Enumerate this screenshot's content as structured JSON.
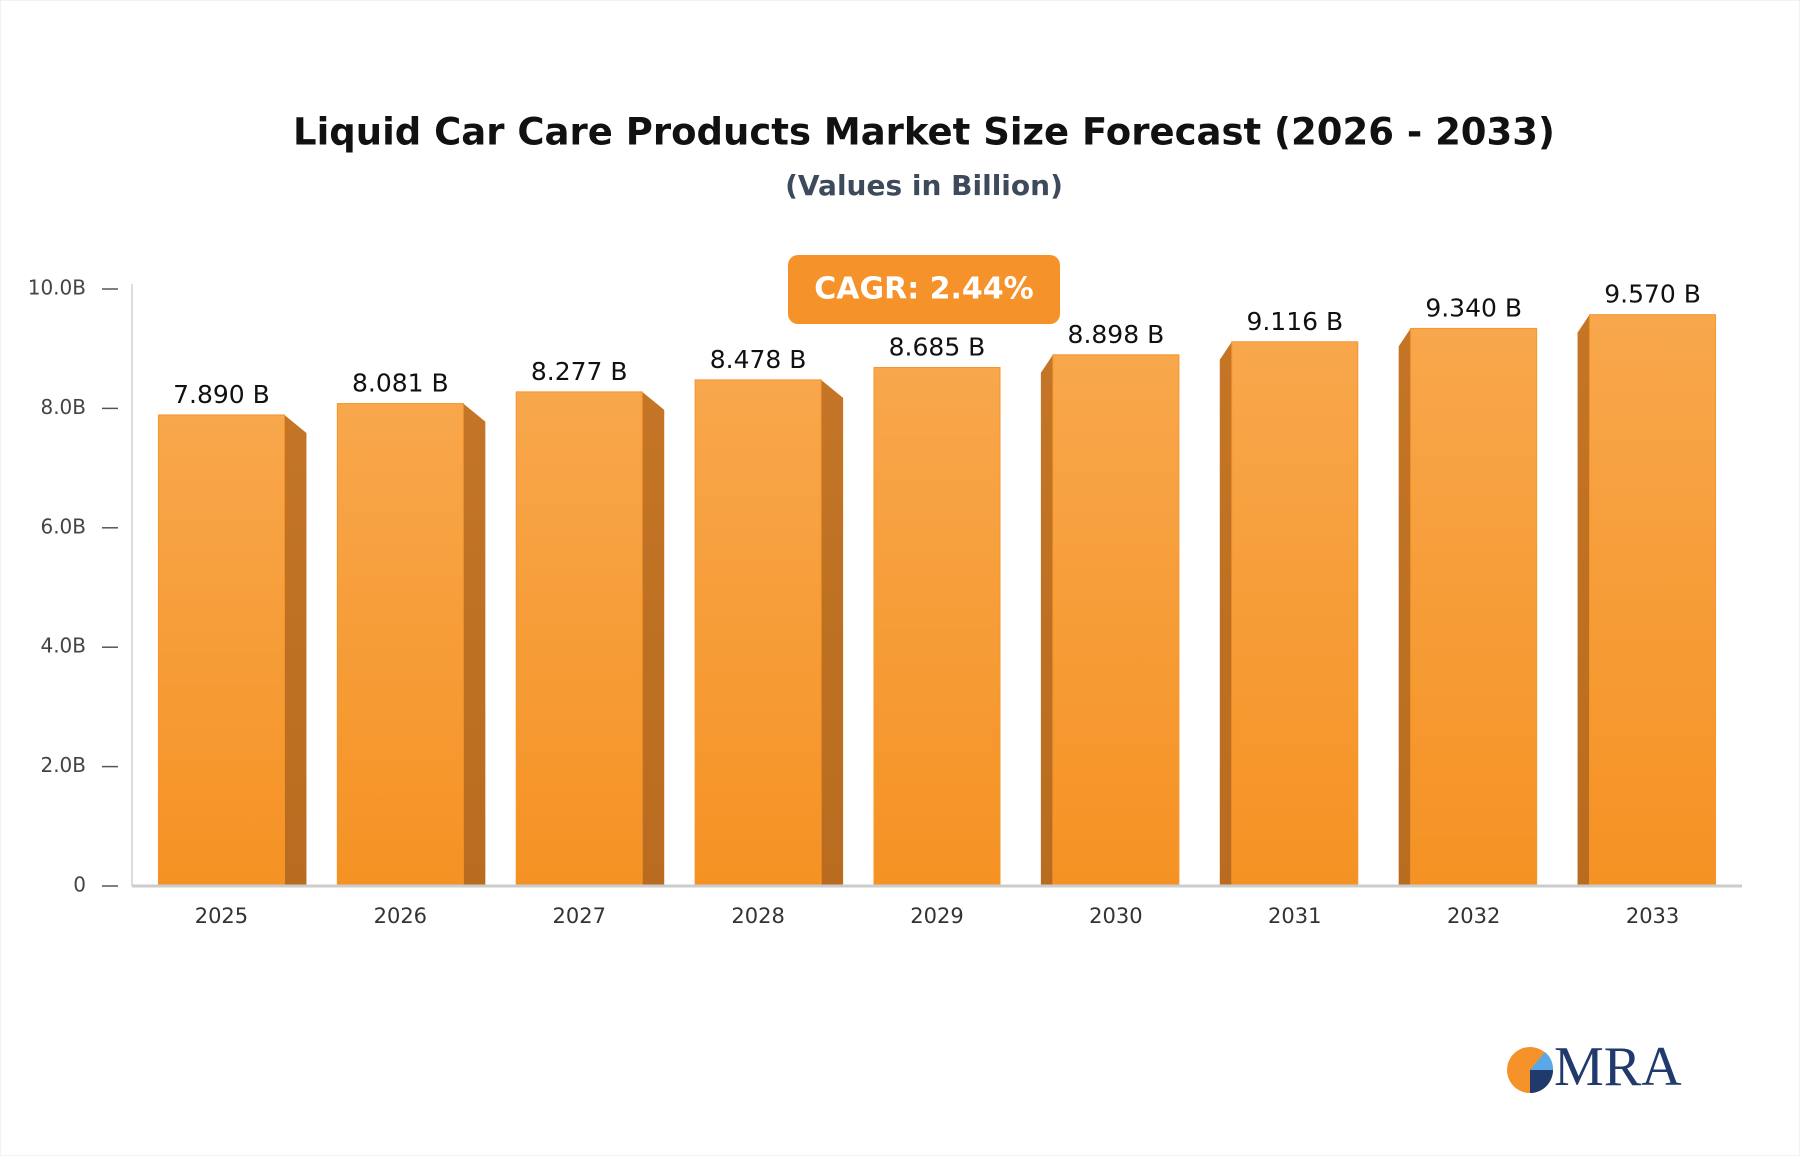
{
  "chart_data": {
    "type": "bar",
    "title": "Liquid Car Care Products Market Size Forecast (2026 - 2033)",
    "subtitle": "(Values in Billion)",
    "annotation": "CAGR: 2.44%",
    "logo": "MRA",
    "categories": [
      "2025",
      "2026",
      "2027",
      "2028",
      "2029",
      "2030",
      "2031",
      "2032",
      "2033"
    ],
    "values": [
      7.89,
      8.081,
      8.277,
      8.478,
      8.685,
      8.898,
      9.116,
      9.34,
      9.57
    ],
    "value_labels": [
      "7.890 B",
      "8.081 B",
      "8.277 B",
      "8.478 B",
      "8.685 B",
      "8.898 B",
      "9.116 B",
      "9.340 B",
      "9.570 B"
    ],
    "color": "#f5952b",
    "ylim": [
      0,
      10
    ],
    "yticks": [
      0,
      {
        "value": 2,
        "label": "2.0B"
      },
      {
        "value": 4,
        "label": "4.0B"
      },
      {
        "value": 6,
        "label": "6.0B"
      },
      {
        "value": 8,
        "label": "8.0B"
      },
      {
        "value": 10,
        "label": "10.0B"
      }
    ],
    "grid": false
  }
}
